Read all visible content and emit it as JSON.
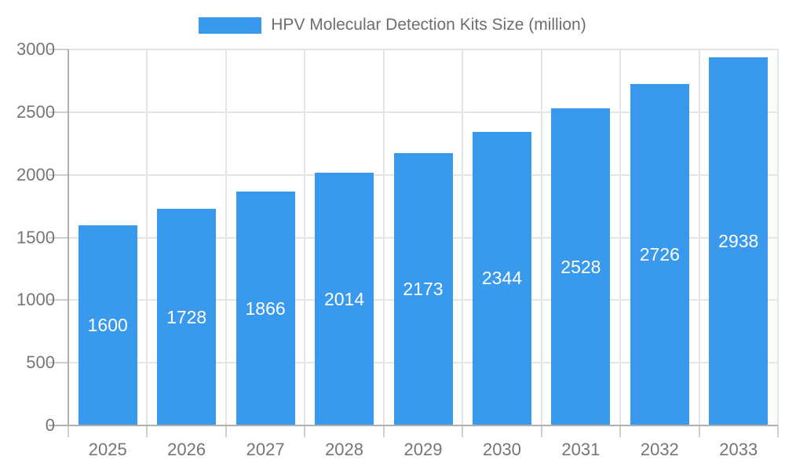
{
  "chart_data": {
    "type": "bar",
    "title": "HPV Molecular Detection Kits Size (million)",
    "legend": [
      {
        "label": "HPV Molecular Detection Kits Size (million)",
        "color": "#3999ec"
      }
    ],
    "legend_position": "top-center",
    "categories": [
      "2025",
      "2026",
      "2027",
      "2028",
      "2029",
      "2030",
      "2031",
      "2032",
      "2033"
    ],
    "series": [
      {
        "name": "HPV Molecular Detection Kits Size (million)",
        "values": [
          1600,
          1728,
          1866,
          2014,
          2173,
          2344,
          2528,
          2726,
          2938
        ]
      }
    ],
    "bar_labels_shown": true,
    "xlabel": "",
    "ylabel": "",
    "ylim": [
      0,
      3000
    ],
    "yticks": [
      0,
      500,
      1000,
      1500,
      2000,
      2500,
      3000
    ],
    "grid": true,
    "colors": {
      "bar": "#3999ec",
      "bar_label": "#ffffff",
      "axis_text": "#757575",
      "legend_text": "#6e6e6e",
      "gridline": "#e5e5e5",
      "tick": "#cfcfcf",
      "axis_line": "#b0b0b0"
    }
  }
}
